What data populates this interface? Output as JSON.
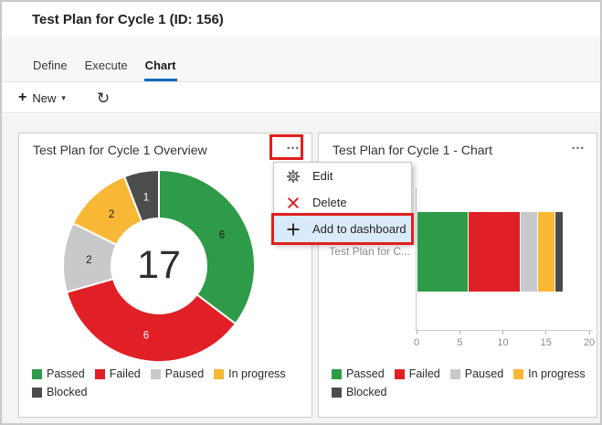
{
  "header": {
    "title": "Test Plan for Cycle 1 (ID: 156)"
  },
  "tabs": [
    {
      "label": "Define",
      "active": false
    },
    {
      "label": "Execute",
      "active": false
    },
    {
      "label": "Chart",
      "active": true
    }
  ],
  "toolbar": {
    "new_button": {
      "plus_glyph": "+",
      "label": "New",
      "caret_glyph": "▾"
    },
    "refresh_glyph": "↻"
  },
  "context_menu": {
    "items": [
      {
        "label": "Edit",
        "icon": "gear-icon",
        "highlighted": false
      },
      {
        "label": "Delete",
        "icon": "delete-x-icon",
        "highlighted": false
      },
      {
        "label": "Add to dashboard",
        "icon": "plus-icon",
        "highlighted": true
      }
    ]
  },
  "annotation": {
    "color": "#e01f1d"
  },
  "colors": {
    "passed": "#2e9b48",
    "failed": "#e11f26",
    "paused": "#c9c9c9",
    "in_progress": "#f8b735",
    "blocked": "#4c4c4c",
    "tab_underline": "#106ebe",
    "menu_highlight_bg": "#d9eafa"
  },
  "chart_data": [
    {
      "type": "pie",
      "subtype": "donut",
      "title": "Test Plan for Cycle 1 Overview",
      "more_glyph": "…",
      "total_label": "17",
      "legend_position": "bottom",
      "series": [
        {
          "name": "Passed",
          "value": 6,
          "color": "#2e9b48",
          "label_color": "#1d1d1d"
        },
        {
          "name": "Failed",
          "value": 6,
          "color": "#e11f26",
          "label_color": "#ffffff"
        },
        {
          "name": "Paused",
          "value": 2,
          "color": "#c9c9c9",
          "label_color": "#1d1d1d"
        },
        {
          "name": "In progress",
          "value": 2,
          "color": "#f8b735",
          "label_color": "#1d1d1d"
        },
        {
          "name": "Blocked",
          "value": 1,
          "color": "#4c4c4c",
          "label_color": "#ffffff"
        }
      ]
    },
    {
      "type": "bar",
      "subtype": "horizontal-stacked",
      "title": "Test Plan for Cycle 1 - Chart",
      "more_glyph": "…",
      "category_label": "Test Plan for C...",
      "xlim": [
        0,
        20
      ],
      "x_ticks": [
        0,
        5,
        10,
        15,
        20
      ],
      "legend_position": "bottom",
      "series": [
        {
          "name": "Passed",
          "value": 6,
          "color": "#2e9b48"
        },
        {
          "name": "Failed",
          "value": 6,
          "color": "#e11f26"
        },
        {
          "name": "Paused",
          "value": 2,
          "color": "#c9c9c9"
        },
        {
          "name": "In progress",
          "value": 2,
          "color": "#f8b735"
        },
        {
          "name": "Blocked",
          "value": 1,
          "color": "#4c4c4c"
        }
      ]
    }
  ]
}
